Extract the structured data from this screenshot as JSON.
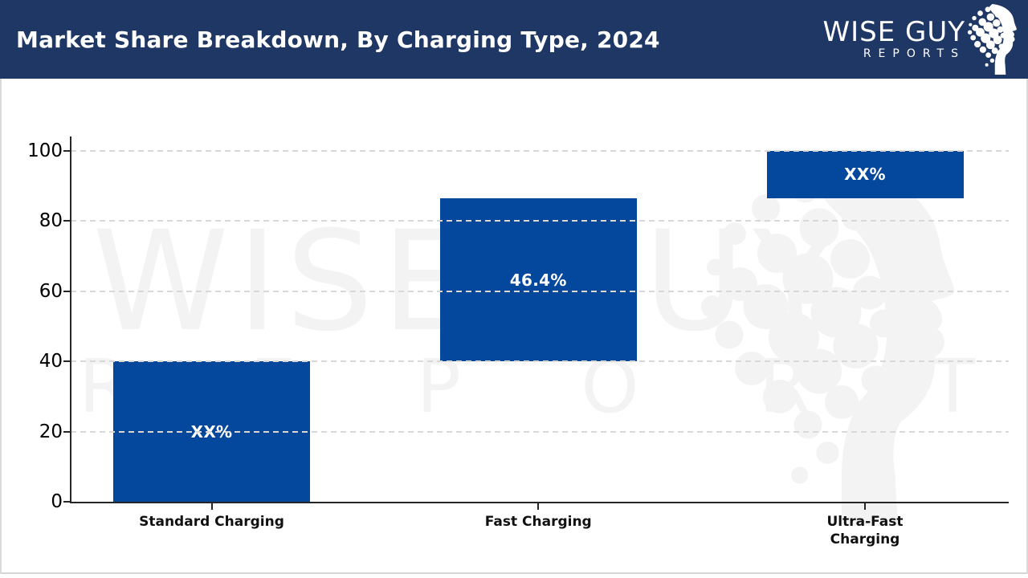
{
  "header": {
    "title": "Market Share Breakdown, By Charging Type, 2024",
    "logo": {
      "line1": "WISE GUY",
      "line2": "REPORTS"
    },
    "background_color": "#1f3765"
  },
  "watermark": {
    "line1": "WISE GUY",
    "line2": "R E P O R T S",
    "color": "#f3f3f3"
  },
  "chart_data": {
    "type": "bar",
    "subtype": "waterfall-range-bars",
    "title": "Market Share Breakdown, By Charging Type, 2024",
    "categories": [
      "Standard Charging",
      "Fast Charging",
      "Ultra-Fast Charging"
    ],
    "bars": [
      {
        "category": "Standard Charging",
        "display": "Standard Charging",
        "start": 0,
        "end": 40,
        "label": "XX%"
      },
      {
        "category": "Fast Charging",
        "display": "Fast Charging",
        "start": 40,
        "end": 86.4,
        "label": "46.4%"
      },
      {
        "category": "Ultra-Fast Charging",
        "display": "Ultra-Fast\nCharging",
        "start": 86.4,
        "end": 100,
        "label": "XX%"
      }
    ],
    "yticks": [
      0,
      20,
      40,
      60,
      80,
      100
    ],
    "ylim": [
      0,
      100
    ],
    "grid": "horizontal-dashed",
    "legend": "none",
    "bar_color": "#04489d",
    "grid_color": "#d8d8d8",
    "axis_color": "#262626"
  }
}
